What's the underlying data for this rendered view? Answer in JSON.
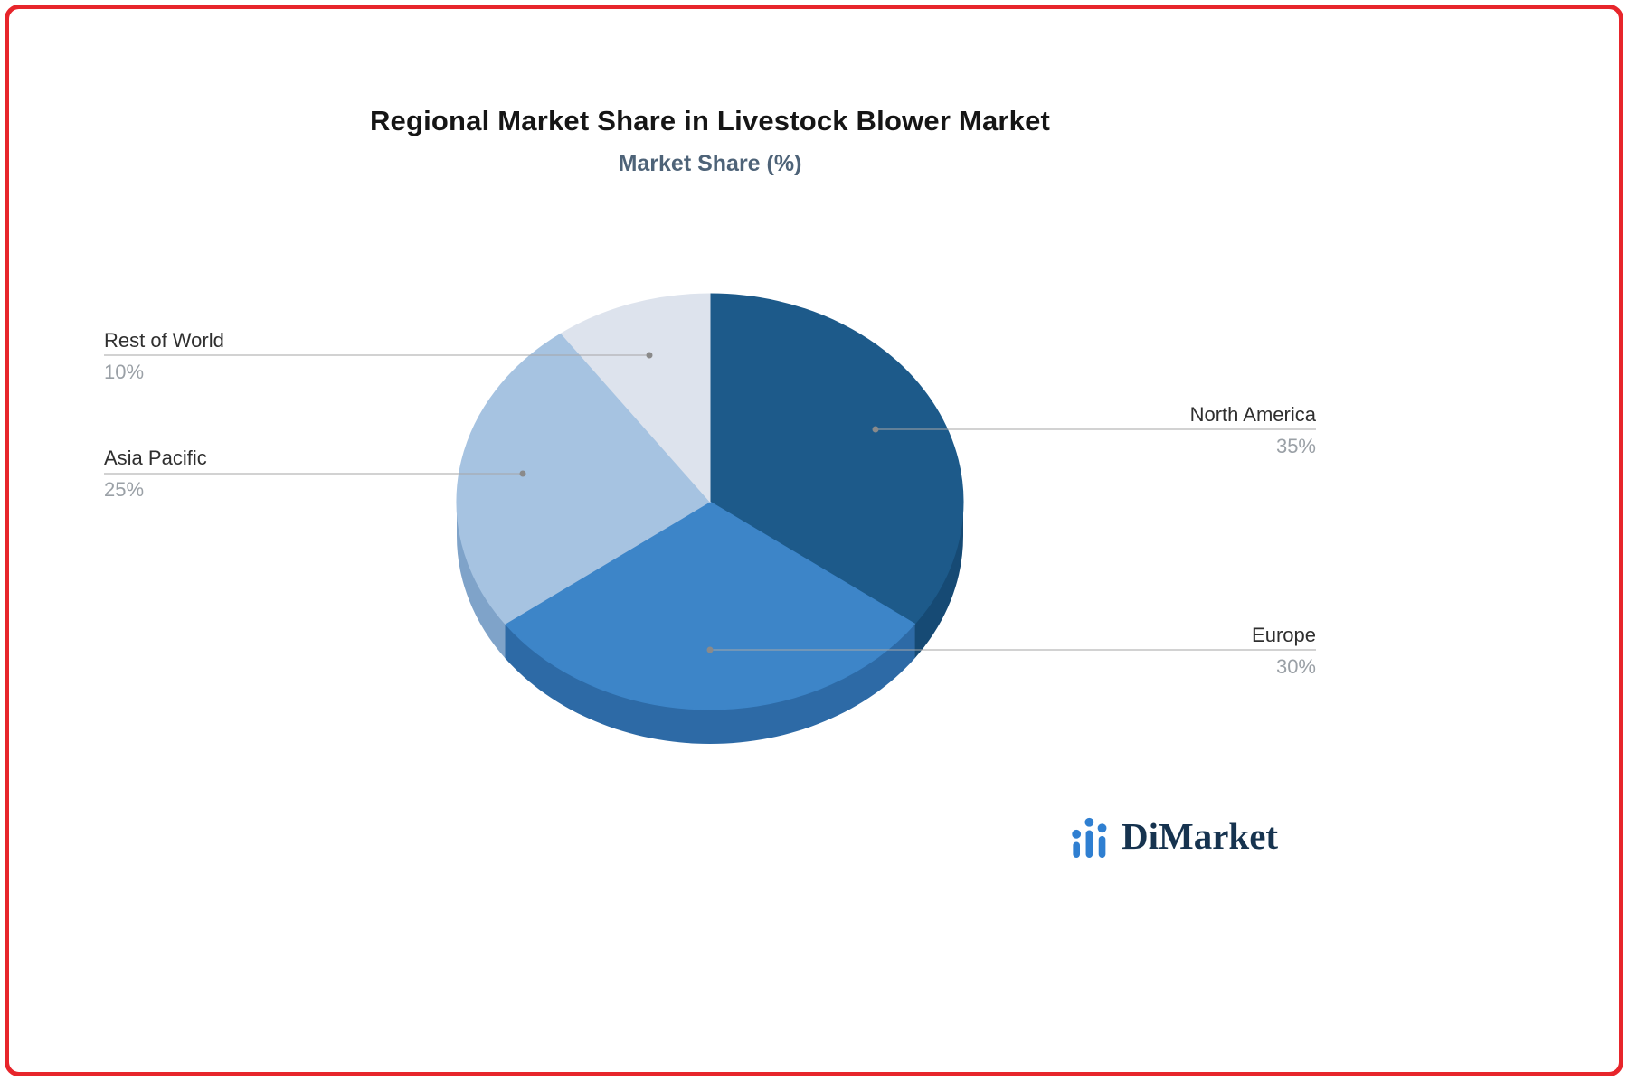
{
  "chart_data": {
    "type": "pie",
    "style": "3d",
    "title": "Regional Market Share in Livestock Blower Market",
    "subtitle": "Market Share (%)",
    "unit": "%",
    "categories": [
      "North America",
      "Europe",
      "Asia Pacific",
      "Rest of World"
    ],
    "values": [
      35,
      30,
      25,
      10
    ],
    "value_labels": [
      "35%",
      "30%",
      "25%",
      "10%"
    ],
    "total": 100,
    "colors": [
      "#1d5a8a",
      "#3d85c8",
      "#a6c3e1",
      "#dde3ed"
    ],
    "side_colors": [
      "#164a74",
      "#2d6aa6",
      "#7fa3c9",
      "#b9c4d4"
    ],
    "legend": "none",
    "grid": "off"
  },
  "branding": {
    "logo_text": "DiMarket",
    "logo_icon": "bar-chart-dots-icon",
    "logo_text_color": "#16334f",
    "logo_icon_color": "#2f7fd1"
  },
  "annotation": {
    "frame_color": "#e7252b"
  }
}
